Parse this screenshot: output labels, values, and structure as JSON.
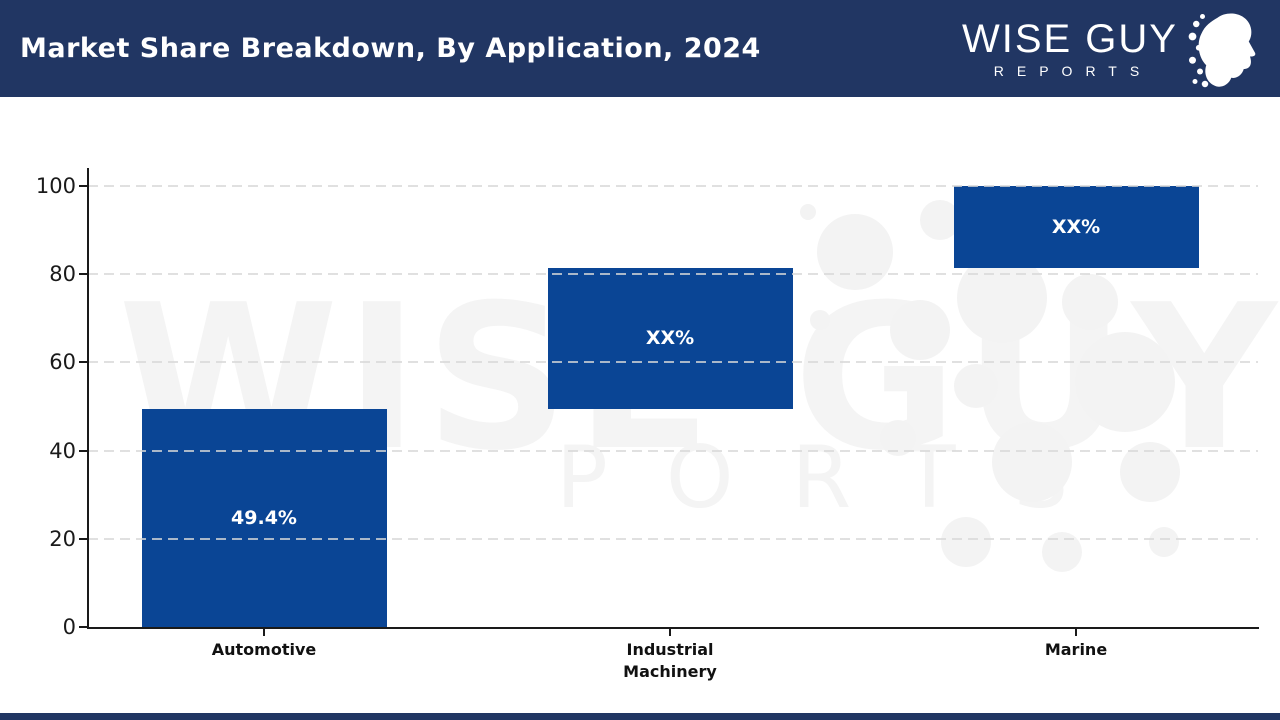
{
  "header": {
    "title": "Market Share Breakdown, By Application, 2024",
    "logo": {
      "line1": "WISE GUY",
      "line2": "REPORTS"
    }
  },
  "watermark": {
    "line1": "WISE GUY",
    "line2": "PORTS"
  },
  "chart_data": {
    "type": "bar",
    "subtype": "waterfall",
    "title": "Market Share Breakdown, By Application, 2024",
    "categories": [
      "Automotive",
      "Industrial\nMachinery",
      "Marine"
    ],
    "segments": [
      {
        "category": "Automotive",
        "start": 0,
        "end": 49.4,
        "value": 49.4,
        "label": "49.4%"
      },
      {
        "category": "Industrial Machinery",
        "start": 49.4,
        "end": 81.5,
        "value": 32.1,
        "label": "XX%"
      },
      {
        "category": "Marine",
        "start": 81.5,
        "end": 100,
        "value": 18.5,
        "label": "XX%"
      }
    ],
    "xlabel": "",
    "ylabel": "",
    "yticks": [
      0,
      20,
      40,
      60,
      80,
      100
    ],
    "ylim": [
      0,
      100
    ],
    "grid": true,
    "grid_style": "dashed",
    "legend": false
  },
  "colors": {
    "header_bg": "#213663",
    "footer_bg": "#213663",
    "bar": "#0a4595",
    "bar_label": "#ffffff",
    "grid": "#d8d8d8",
    "axis": "#1a1a1a",
    "watermark": "#f4f4f4"
  }
}
